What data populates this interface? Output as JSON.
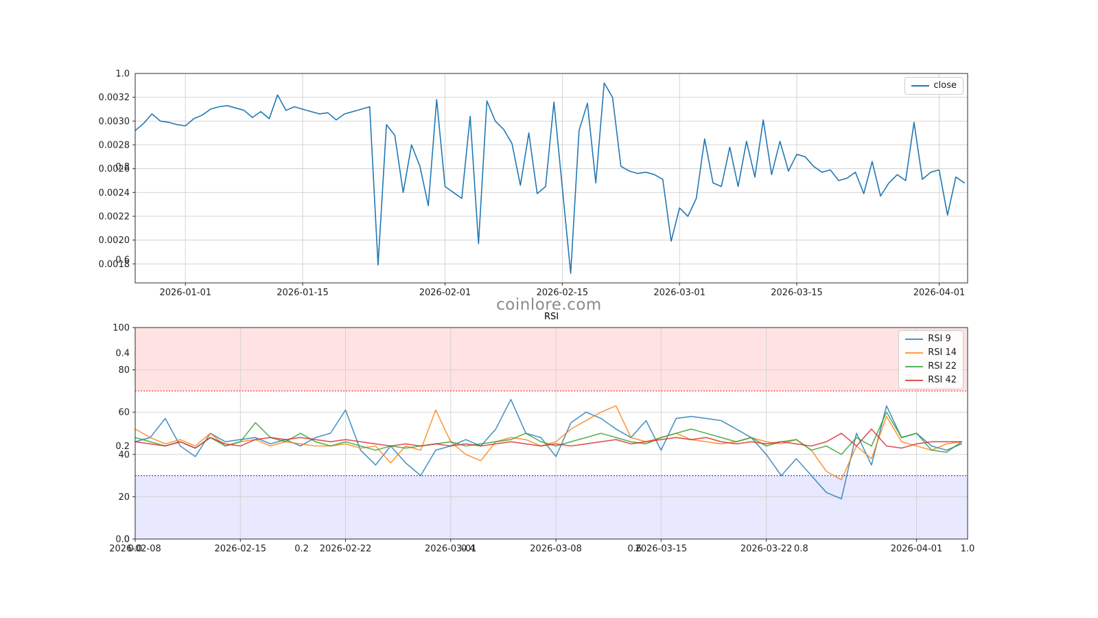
{
  "watermark": "coinlore.com",
  "overlay_axis": {
    "yticks": [
      {
        "label": "1.0",
        "f": 1.0
      },
      {
        "label": "0.8",
        "f": 0.8
      },
      {
        "label": "0.6",
        "f": 0.6
      },
      {
        "label": "0.4",
        "f": 0.4
      },
      {
        "label": "0.2",
        "f": 0.2
      },
      {
        "label": "0.0",
        "f": 0.0
      }
    ],
    "xticks": [
      {
        "label": "0.0",
        "f": 0.0
      },
      {
        "label": "0.2",
        "f": 0.2
      },
      {
        "label": "0.4",
        "f": 0.4
      },
      {
        "label": "0.6",
        "f": 0.6
      },
      {
        "label": "0.8",
        "f": 0.8
      },
      {
        "label": "1.0",
        "f": 1.0
      }
    ]
  },
  "chart_data": [
    {
      "name": "price",
      "type": "line",
      "title": "",
      "xlabel": "",
      "ylabel": "",
      "grid": true,
      "legend_position": "upper right",
      "x_unit": "days since 2025-12-26",
      "xlim": [
        0,
        99.4
      ],
      "ylim": [
        0.00164,
        0.0034
      ],
      "xticks": [
        {
          "label": "2026-01-01",
          "v": 6
        },
        {
          "label": "2026-01-15",
          "v": 20
        },
        {
          "label": "2026-02-01",
          "v": 37
        },
        {
          "label": "2026-02-15",
          "v": 51
        },
        {
          "label": "2026-03-01",
          "v": 65
        },
        {
          "label": "2026-03-15",
          "v": 79
        },
        {
          "label": "2026-04-01",
          "v": 96
        }
      ],
      "yticks": [
        {
          "label": "0.0018",
          "v": 0.0018
        },
        {
          "label": "0.0020",
          "v": 0.002
        },
        {
          "label": "0.0022",
          "v": 0.0022
        },
        {
          "label": "0.0024",
          "v": 0.0024
        },
        {
          "label": "0.0026",
          "v": 0.0026
        },
        {
          "label": "0.0028",
          "v": 0.0028
        },
        {
          "label": "0.0030",
          "v": 0.003
        },
        {
          "label": "0.0032",
          "v": 0.0032
        }
      ],
      "series": [
        {
          "name": "close",
          "color": "#1f77b4",
          "opacity": 1,
          "values": [
            0.00292,
            0.00298,
            0.00306,
            0.003,
            0.00299,
            0.00297,
            0.00296,
            0.00302,
            0.00305,
            0.0031,
            0.00312,
            0.00313,
            0.00311,
            0.00309,
            0.00303,
            0.00308,
            0.00302,
            0.00322,
            0.00309,
            0.00312,
            0.0031,
            0.00308,
            0.00306,
            0.00307,
            0.00301,
            0.00306,
            0.00308,
            0.0031,
            0.00312,
            0.00179,
            0.00297,
            0.00288,
            0.0024,
            0.0028,
            0.00262,
            0.00229,
            0.00318,
            0.00245,
            0.0024,
            0.00235,
            0.00304,
            0.00197,
            0.00317,
            0.003,
            0.00293,
            0.00281,
            0.00246,
            0.0029,
            0.00239,
            0.00245,
            0.00316,
            0.00244,
            0.00172,
            0.00292,
            0.00315,
            0.00248,
            0.00332,
            0.0032,
            0.00262,
            0.00258,
            0.00256,
            0.00257,
            0.00255,
            0.00251,
            0.00199,
            0.00227,
            0.0022,
            0.00235,
            0.00285,
            0.00248,
            0.00245,
            0.00278,
            0.00245,
            0.00283,
            0.00253,
            0.00301,
            0.00255,
            0.00283,
            0.00258,
            0.00272,
            0.0027,
            0.00262,
            0.00257,
            0.00259,
            0.0025,
            0.00252,
            0.00257,
            0.00239,
            0.00266,
            0.00237,
            0.00248,
            0.00255,
            0.0025,
            0.00299,
            0.00251,
            0.00257,
            0.00259,
            0.00221,
            0.00253,
            0.00248
          ]
        }
      ]
    },
    {
      "name": "rsi",
      "type": "line",
      "title": "RSI",
      "xlabel": "",
      "ylabel": "",
      "grid": true,
      "legend_position": "upper right",
      "x_unit": "days since 2026-02-08",
      "xlim": [
        0,
        55.4
      ],
      "ylim": [
        0,
        100
      ],
      "bands": [
        {
          "from": 70,
          "to": 100,
          "color": "rgba(255,0,0,0.11)"
        },
        {
          "from": 0,
          "to": 30,
          "color": "rgba(45,45,255,0.11)"
        }
      ],
      "hlines": [
        {
          "v": 70,
          "color": "#ff0000"
        },
        {
          "v": 30,
          "color": "#0000ee"
        }
      ],
      "xticks": [
        {
          "label": "2026-02-08",
          "v": 0
        },
        {
          "label": "2026-02-15",
          "v": 7
        },
        {
          "label": "2026-02-22",
          "v": 14
        },
        {
          "label": "2026-03-01",
          "v": 21
        },
        {
          "label": "2026-03-08",
          "v": 28
        },
        {
          "label": "2026-03-15",
          "v": 35
        },
        {
          "label": "2026-03-22",
          "v": 42
        },
        {
          "label": "2026-04-01",
          "v": 52
        }
      ],
      "yticks": [
        {
          "label": "0",
          "v": 0
        },
        {
          "label": "20",
          "v": 20
        },
        {
          "label": "40",
          "v": 40
        },
        {
          "label": "60",
          "v": 60
        },
        {
          "label": "80",
          "v": 80
        },
        {
          "label": "100",
          "v": 100
        }
      ],
      "series": [
        {
          "name": "RSI 9",
          "color": "#1f77b4",
          "opacity": 0.8,
          "values": [
            46,
            48,
            57,
            44,
            39,
            50,
            46,
            47,
            48,
            45,
            47,
            44,
            48,
            50,
            61,
            42,
            35,
            44,
            36,
            30,
            42,
            44,
            47,
            44,
            52,
            66,
            50,
            48,
            39,
            55,
            60,
            57,
            52,
            48,
            56,
            42,
            57,
            58,
            57,
            56,
            52,
            48,
            40,
            30,
            38,
            30,
            22,
            19,
            50,
            35,
            63,
            48,
            50,
            44,
            42,
            45
          ]
        },
        {
          "name": "RSI 14",
          "color": "#ff7f0e",
          "opacity": 0.8,
          "values": [
            52,
            48,
            45,
            47,
            44,
            50,
            44,
            46,
            47,
            44,
            46,
            45,
            44,
            44,
            45,
            43,
            44,
            36,
            44,
            42,
            61,
            46,
            40,
            37,
            46,
            48,
            47,
            44,
            46,
            52,
            56,
            60,
            63,
            48,
            46,
            48,
            50,
            47,
            46,
            45,
            46,
            48,
            46,
            45,
            47,
            42,
            32,
            28,
            44,
            38,
            58,
            46,
            44,
            42,
            45,
            46
          ]
        },
        {
          "name": "RSI 22",
          "color": "#2ca02c",
          "opacity": 0.8,
          "values": [
            48,
            46,
            44,
            46,
            43,
            48,
            44,
            46,
            55,
            48,
            46,
            50,
            46,
            44,
            46,
            44,
            42,
            44,
            43,
            44,
            45,
            46,
            44,
            45,
            46,
            47,
            50,
            46,
            44,
            46,
            48,
            50,
            48,
            46,
            45,
            48,
            50,
            52,
            50,
            48,
            46,
            48,
            44,
            46,
            47,
            42,
            44,
            40,
            48,
            44,
            60,
            48,
            50,
            42,
            41,
            46
          ]
        },
        {
          "name": "RSI 42",
          "color": "#d62728",
          "opacity": 0.8,
          "values": [
            46,
            45,
            44,
            46,
            43,
            48,
            45,
            44,
            47,
            48,
            47,
            48,
            47,
            46,
            47,
            46,
            45,
            44,
            45,
            44,
            45,
            44,
            45,
            44,
            45,
            46,
            45,
            44,
            45,
            44,
            45,
            46,
            47,
            45,
            46,
            47,
            48,
            47,
            48,
            46,
            45,
            46,
            45,
            46,
            45,
            44,
            46,
            50,
            44,
            52,
            44,
            43,
            45,
            46,
            46,
            46
          ]
        }
      ]
    }
  ]
}
